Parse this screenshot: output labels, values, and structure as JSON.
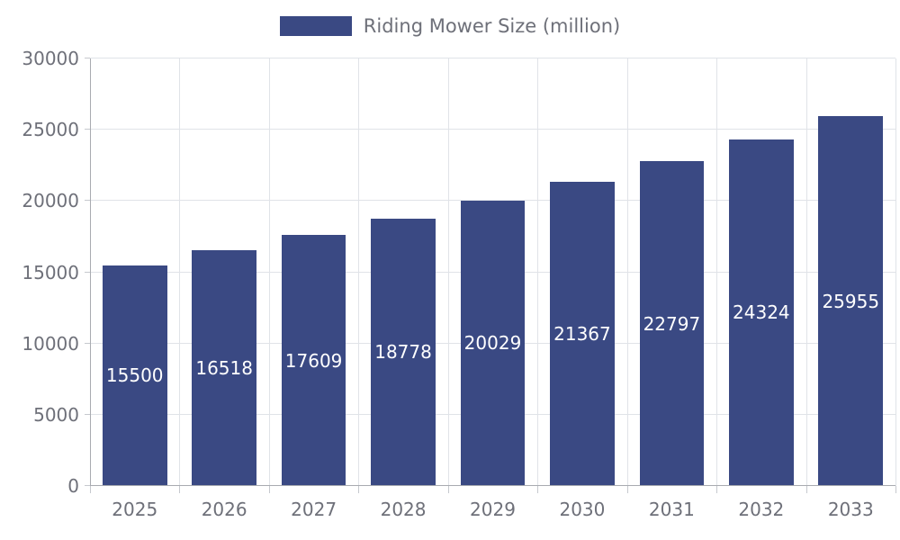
{
  "chart_data": {
    "type": "bar",
    "title": "",
    "categories": [
      "2025",
      "2026",
      "2027",
      "2028",
      "2029",
      "2030",
      "2031",
      "2032",
      "2033"
    ],
    "series": [
      {
        "name": "Riding Mower Size (million)",
        "values": [
          15500,
          16518,
          17609,
          18778,
          20029,
          21367,
          22797,
          24324,
          25955
        ]
      }
    ],
    "value_labels_shown": [
      15500,
      16518,
      17609,
      18778,
      20029,
      21367,
      22797,
      24324,
      25955
    ],
    "xlabel": "",
    "ylabel": "",
    "ylim": [
      0,
      30000
    ],
    "yticks": [
      0,
      5000,
      10000,
      15000,
      20000,
      25000,
      30000
    ],
    "grid": true,
    "legend_position": "top-center",
    "value_label_position": "inside-center",
    "colors": {
      "bar": "#3A4983",
      "value_label": "#FFFFFF",
      "axis_text": "#6E7079",
      "grid_line": "#E0E3E8",
      "axis_line": "#A8ABB0",
      "tick_mark": "#C6C9CE",
      "background": "#FFFFFF"
    }
  }
}
